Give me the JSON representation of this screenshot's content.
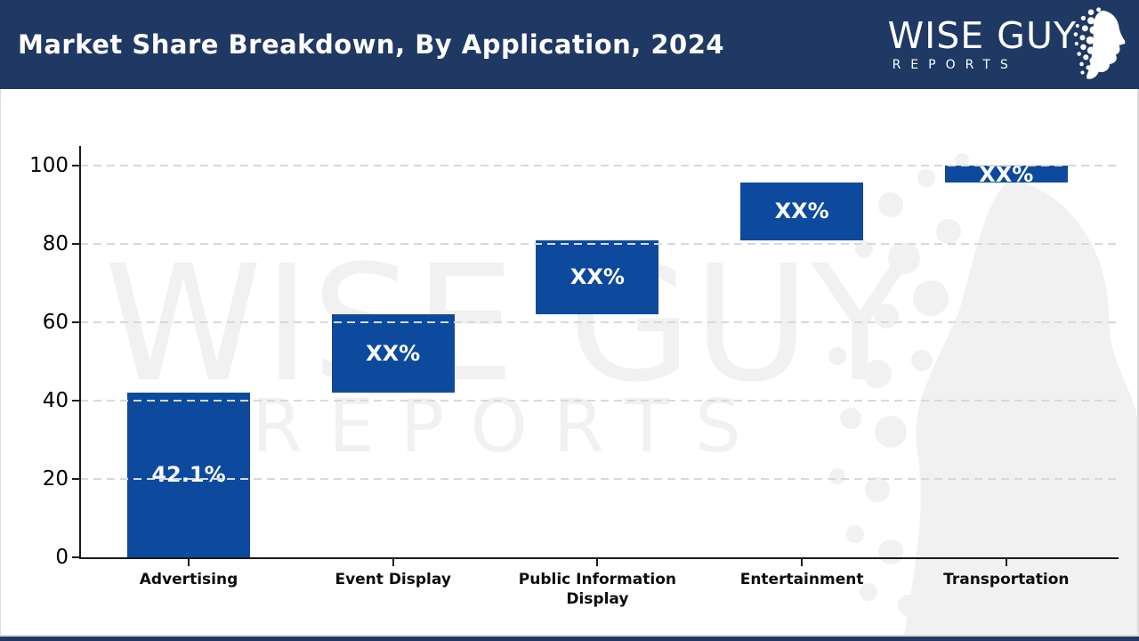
{
  "header": {
    "title": "Market Share Breakdown, By Application, 2024",
    "logo": {
      "line1": "WISE GUY",
      "line2": "REPORTS"
    }
  },
  "watermark": {
    "line1": "WISE GUY",
    "line2": "REPORTS"
  },
  "chart_data": {
    "type": "bar",
    "variant": "waterfall",
    "title": "Market Share Breakdown, By Application, 2024",
    "categories": [
      "Advertising",
      "Event Display",
      "Public Information Display",
      "Entertainment",
      "Transportation"
    ],
    "series": [
      {
        "name": "Market share (%)",
        "starts": [
          0,
          42.1,
          62.0,
          81.0,
          95.6
        ],
        "ends": [
          42.1,
          62.0,
          81.0,
          95.6,
          100
        ]
      }
    ],
    "bar_labels": [
      "42.1%",
      "XX%",
      "XX%",
      "XX%",
      "XX%"
    ],
    "xlabel": "",
    "ylabel": "",
    "ylim": [
      0,
      100
    ],
    "yticks": [
      0,
      20,
      40,
      60,
      80,
      100
    ],
    "grid": "horizontal-dashed",
    "legend": "none",
    "colors": {
      "bar": "#0d4a9e",
      "bar_label": "#ffffff",
      "axis": "#1a1a1a",
      "grid": "#d9d9d9"
    }
  },
  "colors": {
    "header_bg": "#1f3864",
    "canvas_bg": "#ffffff",
    "border": "#d9d9d9",
    "watermark": "#f1f1f1"
  }
}
